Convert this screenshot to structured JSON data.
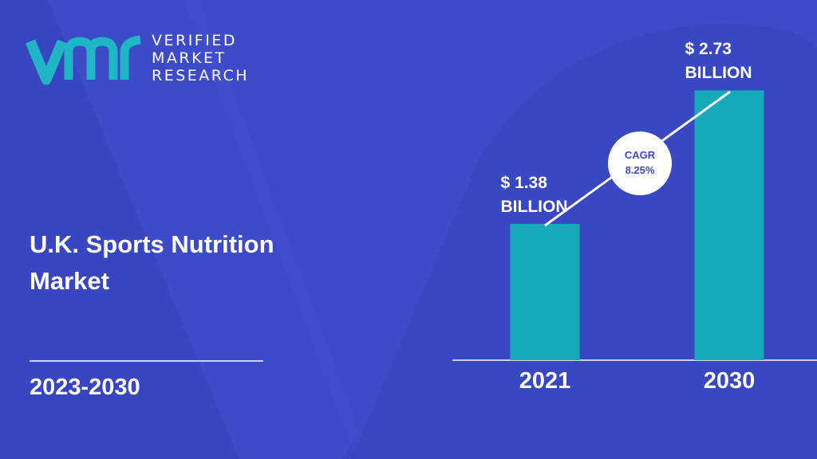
{
  "logo": [
    "VERIFIED",
    "MARKET",
    "RESEARCH"
  ],
  "chart_data": {
    "type": "bar",
    "title": "U.K. Sports Nutrition Market",
    "subtitle": "2023-2030",
    "categories": [
      "2021",
      "2030"
    ],
    "values": [
      1.38,
      2.73
    ],
    "value_labels": [
      "$ 1.38 BILLION",
      "$ 2.73 BILLION"
    ],
    "annotation": "CAGR 8.25%",
    "color": "#17aab8"
  }
}
